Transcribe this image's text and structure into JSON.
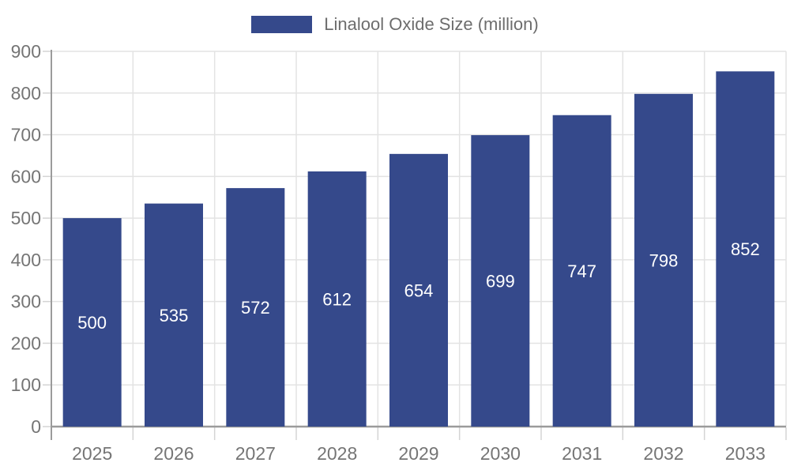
{
  "legend": {
    "label": "Linalool Oxide Size (million)"
  },
  "chart_data": {
    "type": "bar",
    "title": "",
    "categories": [
      "2025",
      "2026",
      "2027",
      "2028",
      "2029",
      "2030",
      "2031",
      "2032",
      "2033"
    ],
    "values": [
      500,
      535,
      572,
      612,
      654,
      699,
      747,
      798,
      852
    ],
    "series_name": "Linalool Oxide Size (million)",
    "xlabel": "",
    "ylabel": "",
    "ylim": [
      0,
      900
    ],
    "yticks": [
      0,
      100,
      200,
      300,
      400,
      500,
      600,
      700,
      800,
      900
    ],
    "grid": true,
    "legend_position": "top-center",
    "value_labels": "inside-middle",
    "colors": {
      "bar": "#35498B",
      "grid": "#e3e3e3",
      "axis": "#9b9b9b",
      "tick": "#d4d4d4",
      "tick_text": "#757575",
      "legend_text": "#6d6d6d",
      "value_text": "#ffffff",
      "background": "#ffffff"
    }
  }
}
